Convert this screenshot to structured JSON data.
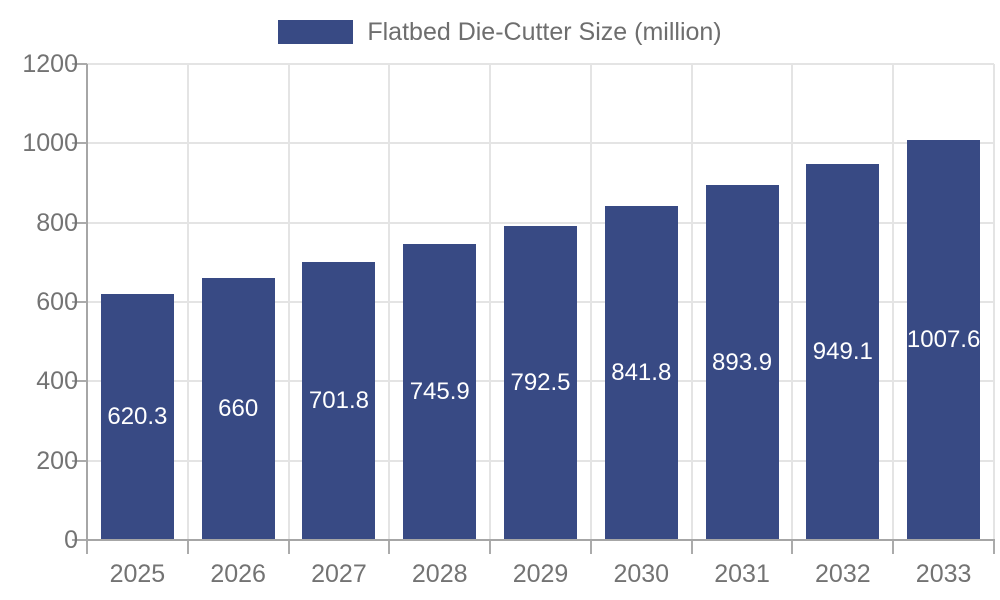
{
  "legend": {
    "label": "Flatbed Die-Cutter Size (million)",
    "swatch_color": "#384a84"
  },
  "chart_data": {
    "type": "bar",
    "title": "Flatbed Die-Cutter Size (million)",
    "categories": [
      "2025",
      "2026",
      "2027",
      "2028",
      "2029",
      "2030",
      "2031",
      "2032",
      "2033"
    ],
    "values": [
      620.3,
      660,
      701.8,
      745.9,
      792.5,
      841.8,
      893.9,
      949.1,
      1007.6
    ],
    "bar_labels": [
      "620.3",
      "660",
      "701.8",
      "745.9",
      "792.5",
      "841.8",
      "893.9",
      "949.1",
      "1007.6"
    ],
    "xlabel": "",
    "ylabel": "",
    "ylim": [
      0,
      1200
    ],
    "yticks": [
      0,
      200,
      400,
      600,
      800,
      1000,
      1200
    ],
    "grid": true,
    "legend_position": "top-center",
    "bar_color": "#384a84",
    "bar_label_color": "#ffffff",
    "grid_color": "#e4e4e4",
    "axis_color": "#a6a6a6",
    "tick_text_color": "#737373",
    "legend_text_color": "#6e6e6e"
  }
}
